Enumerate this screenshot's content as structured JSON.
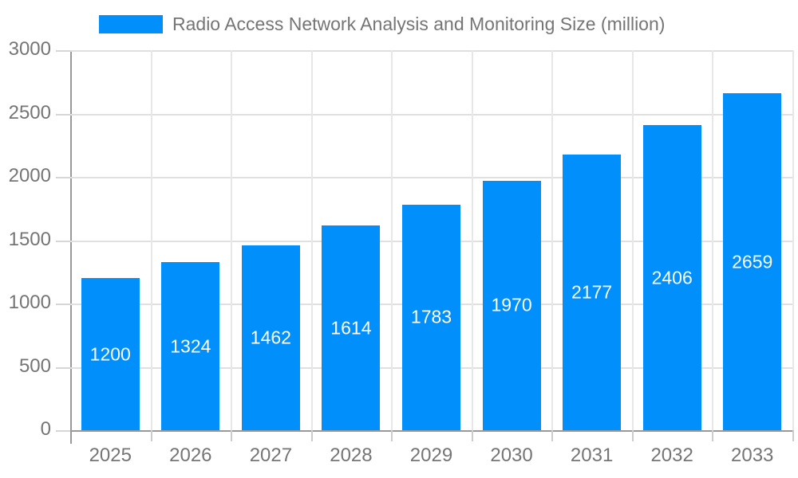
{
  "chart_data": {
    "type": "bar",
    "title": "Radio Access Network Analysis and Monitoring Size (million)",
    "categories": [
      "2025",
      "2026",
      "2027",
      "2028",
      "2029",
      "2030",
      "2031",
      "2032",
      "2033"
    ],
    "values": [
      1200,
      1324,
      1462,
      1614,
      1783,
      1970,
      2177,
      2406,
      2659
    ],
    "series": [
      {
        "name": "Radio Access Network Analysis and Monitoring Size (million)",
        "values": [
          1200,
          1324,
          1462,
          1614,
          1783,
          1970,
          2177,
          2406,
          2659
        ]
      }
    ],
    "xlabel": "",
    "ylabel": "",
    "ylim": [
      0,
      3000
    ],
    "yticks": [
      0,
      500,
      1000,
      1500,
      2000,
      2500,
      3000
    ],
    "grid": true,
    "legend_position": "top",
    "data_labels": "inside-center-white",
    "colors": {
      "bar": "#008FFB",
      "bar_label_text": "#ffffff",
      "axis_text": "#757575",
      "gridline": "#e0e0e0",
      "axis_line": "#999999",
      "background": "#ffffff"
    }
  }
}
